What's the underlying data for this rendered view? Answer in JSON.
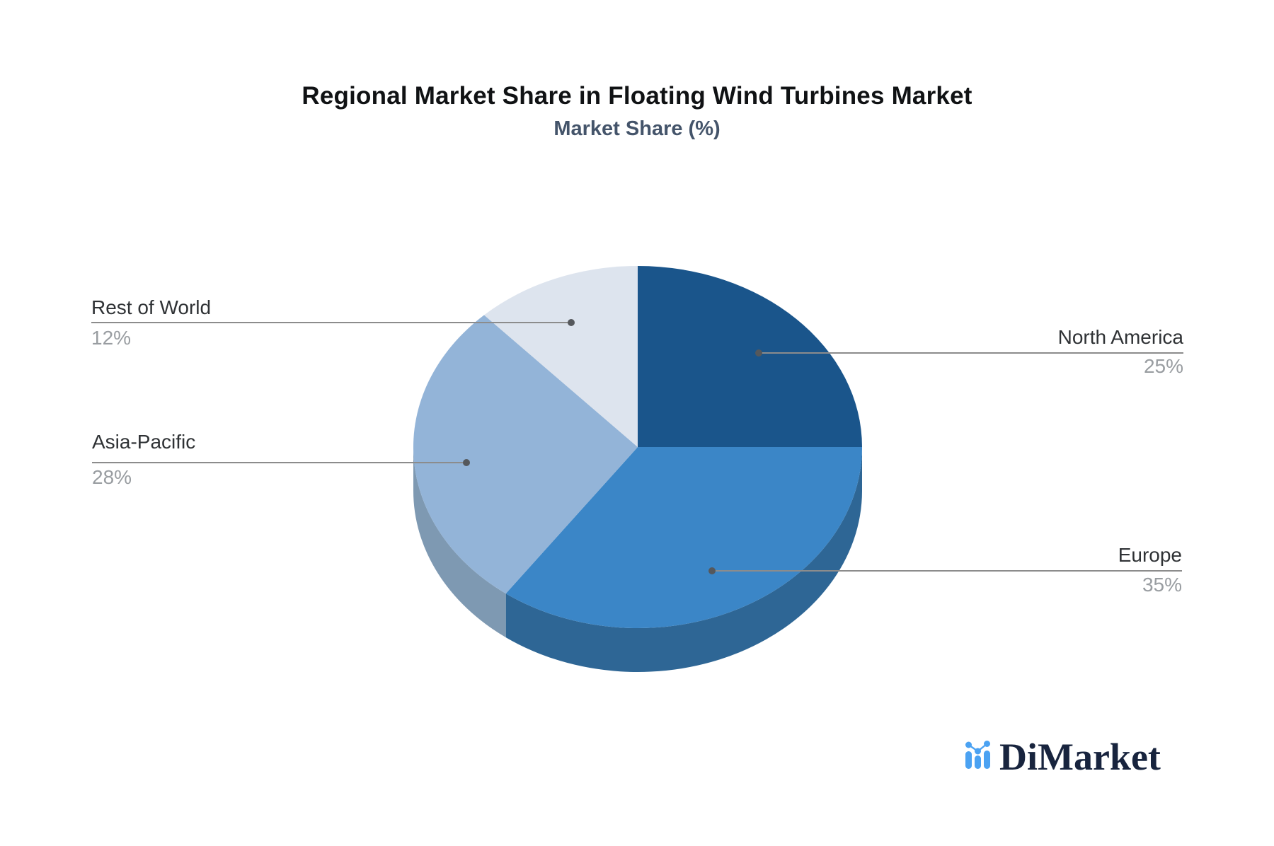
{
  "header": {
    "title": "Regional Market Share in Floating Wind Turbines Market",
    "subtitle": "Market Share (%)"
  },
  "chart_data": {
    "type": "pie",
    "title": "Regional Market Share in Floating Wind Turbines Market",
    "subtitle": "Market Share (%)",
    "unit": "%",
    "effect": "3d",
    "start_angle_deg": 0,
    "clockwise": true,
    "legend": "none",
    "categories": [
      "North America",
      "Europe",
      "Asia-Pacific",
      "Rest of World"
    ],
    "values": [
      25,
      35,
      28,
      12
    ],
    "colors": [
      "#1a558b",
      "#3b86c7",
      "#93b4d8",
      "#dde4ee"
    ],
    "side_colors": [
      "#14466f",
      "#2e6695",
      "#7e99b2",
      "#b9c3d3"
    ]
  },
  "callouts": [
    {
      "label": "North America",
      "value_text": "25%"
    },
    {
      "label": "Europe",
      "value_text": "35%"
    },
    {
      "label": "Asia-Pacific",
      "value_text": "28%"
    },
    {
      "label": "Rest of World",
      "value_text": "12%"
    }
  ],
  "leader_style": {
    "line_color": "#8c8c8c",
    "dot_color": "#55585c"
  },
  "logo": {
    "text": "DiMarket",
    "icon": "bar-line-chart-icon",
    "icon_color": "#4ba2f2",
    "text_color": "#18243e"
  }
}
